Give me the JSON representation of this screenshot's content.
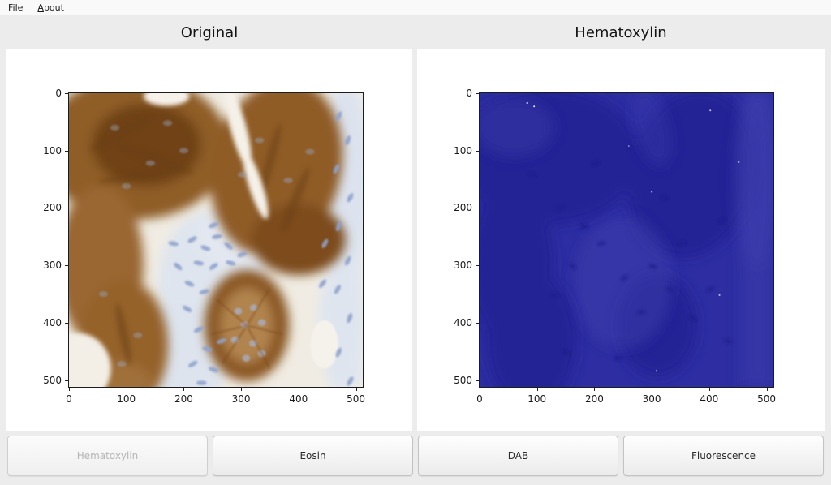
{
  "menubar": {
    "items": [
      {
        "label": "File"
      },
      {
        "label_accel": "A",
        "label_rest": "bout"
      }
    ]
  },
  "panels": [
    {
      "title": "Original"
    },
    {
      "title": "Hematoxylin"
    }
  ],
  "axes": {
    "domain_max": 512,
    "xticks": [
      "0",
      "100",
      "200",
      "300",
      "400",
      "500"
    ],
    "yticks": [
      "0",
      "100",
      "200",
      "300",
      "400",
      "500"
    ]
  },
  "buttons": [
    {
      "label": "Hematoxylin",
      "enabled": false
    },
    {
      "label": "Eosin",
      "enabled": true
    },
    {
      "label": "DAB",
      "enabled": true
    },
    {
      "label": "Fluorescence",
      "enabled": true
    }
  ],
  "colors": {
    "window_background": "#ececec",
    "panel_background": "#ffffff",
    "hematoxylin_blue": "#2e2ea2",
    "dab_brown": "#8f5d26",
    "disabled_text": "#b5b5b5"
  }
}
